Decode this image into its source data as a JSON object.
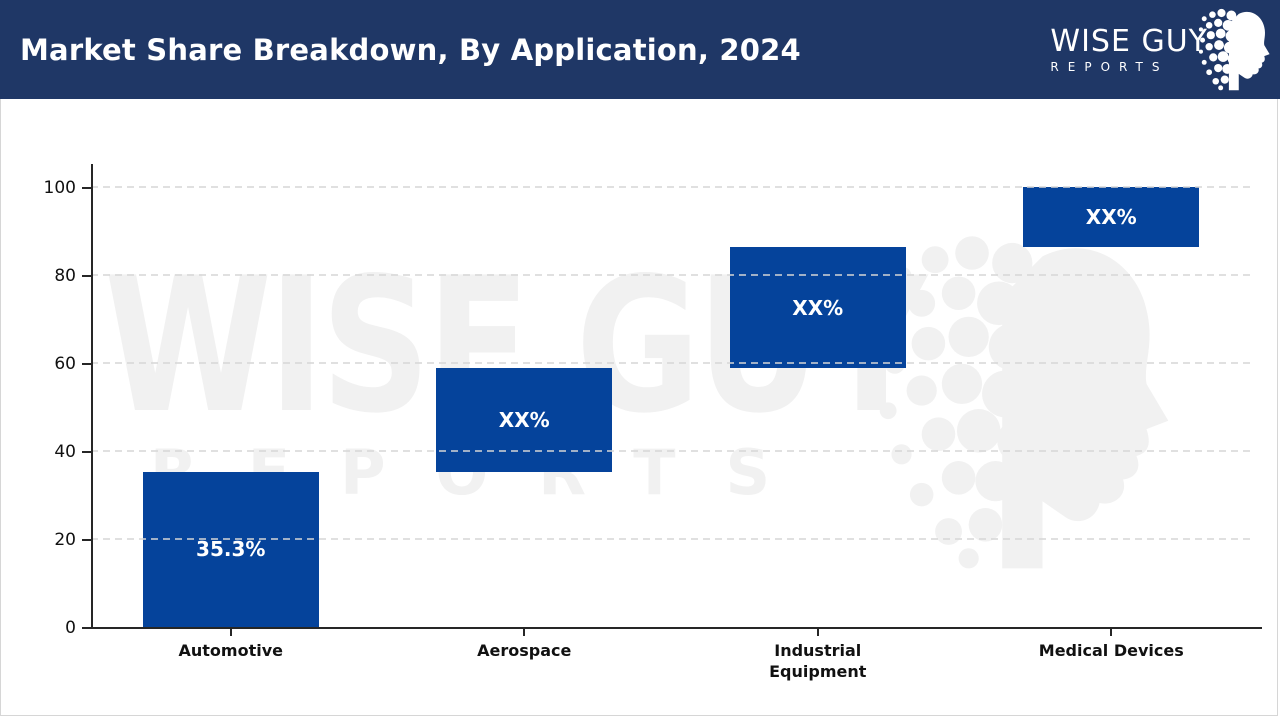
{
  "header": {
    "title": "Market Share Breakdown, By Application, 2024",
    "logo": {
      "brand_top": "WISE GUY",
      "brand_bottom": "REPORTS"
    }
  },
  "watermark": {
    "line1": "WISE GUY",
    "line2": "REPORTS"
  },
  "chart_data": {
    "type": "bar",
    "variant": "waterfall-stacked-percent",
    "title": "Market Share Breakdown, By Application, 2024",
    "categories": [
      "Automotive",
      "Aerospace",
      "Industrial\nEquipment",
      "Medical Devices"
    ],
    "segments": [
      {
        "category": "Automotive",
        "start": 0,
        "end": 35.3,
        "label": "35.3%"
      },
      {
        "category": "Aerospace",
        "start": 35.3,
        "end": 58.8,
        "label": "XX%"
      },
      {
        "category": "Industrial Equipment",
        "start": 58.8,
        "end": 86.3,
        "label": "XX%"
      },
      {
        "category": "Medical Devices",
        "start": 86.3,
        "end": 100,
        "label": "XX%"
      }
    ],
    "yticks": [
      0,
      20,
      40,
      60,
      80,
      100
    ],
    "ylim": [
      0,
      105
    ],
    "xlabel": "",
    "ylabel": "",
    "grid": "horizontal-dashed",
    "legend": "none",
    "bar_color": "#05439B",
    "bar_label_color": "#FFFFFF"
  },
  "colors": {
    "header_bg": "#1F3766",
    "panel_border": "#D6D6D6",
    "axis": "#262626",
    "grid": "#D6D6D6",
    "watermark": "#F1F1F1",
    "bar": "#05439B"
  }
}
